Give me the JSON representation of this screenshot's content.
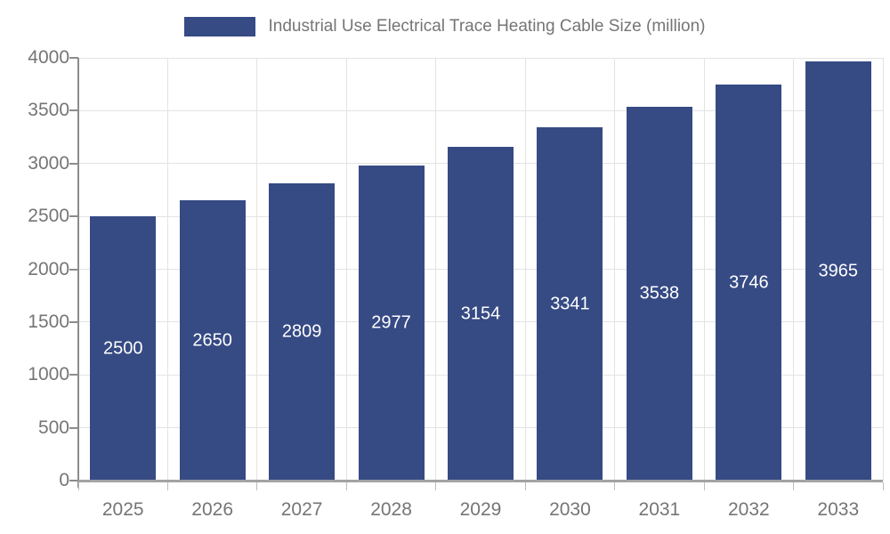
{
  "legend": {
    "label": "Industrial Use Electrical Trace Heating Cable Size (million)"
  },
  "colors": {
    "bar": "#364a84",
    "grid": "#e3e3e3",
    "axis": "#8c8c8c",
    "baseline": "#a3a3a3",
    "tick_label": "#757575",
    "bar_label": "#ffffff",
    "background": "#ffffff"
  },
  "chart_data": {
    "type": "bar",
    "title": "Industrial Use Electrical Trace Heating Cable Size (million)",
    "categories": [
      "2025",
      "2026",
      "2027",
      "2028",
      "2029",
      "2030",
      "2031",
      "2032",
      "2033"
    ],
    "values": [
      2500,
      2650,
      2809,
      2977,
      3154,
      3341,
      3538,
      3746,
      3965
    ],
    "xlabel": "",
    "ylabel": "",
    "ylim": [
      0,
      4000
    ],
    "yticks": [
      0,
      500,
      1000,
      1500,
      2000,
      2500,
      3000,
      3500,
      4000
    ],
    "grid": "both",
    "legend_position": "top-center",
    "bar_value_labels": "inside-middle"
  }
}
